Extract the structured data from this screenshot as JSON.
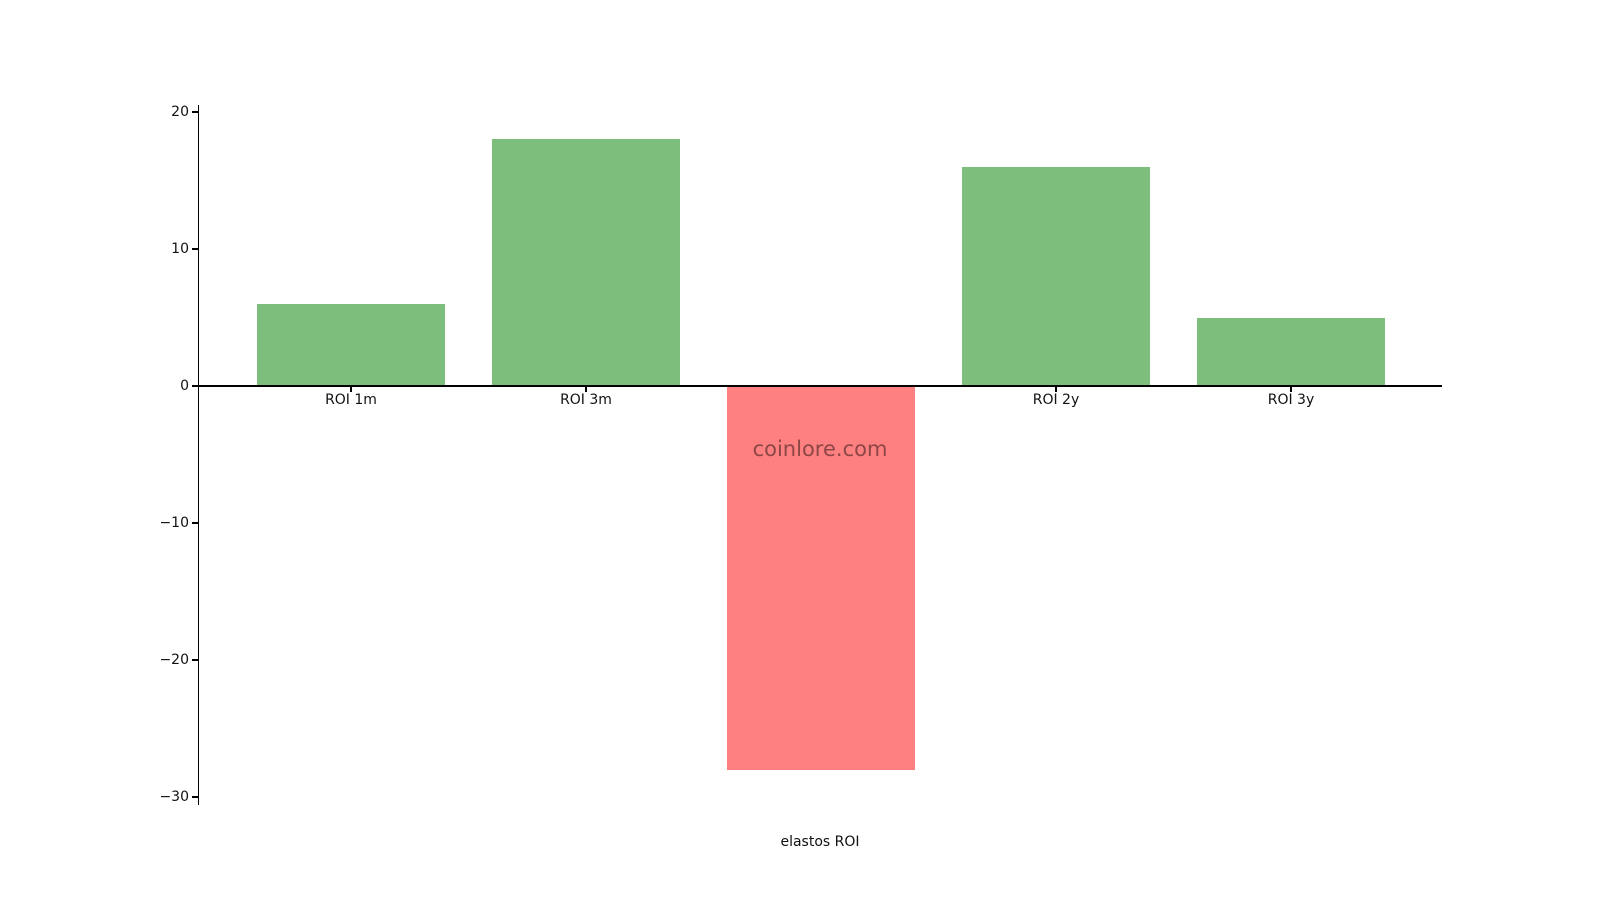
{
  "page": {
    "background_color": "#ffffff"
  },
  "chart_data": {
    "type": "bar",
    "title": "",
    "xlabel": "elastos ROI",
    "ylabel": "",
    "categories": [
      "ROI 1m",
      "ROI 3m",
      "",
      "ROI 2y",
      "ROI 3y"
    ],
    "values": [
      6,
      18,
      -28,
      16,
      5
    ],
    "bar_colors": [
      "#7dbe7d",
      "#7dbe7d",
      "#ff8080",
      "#7dbe7d",
      "#7dbe7d"
    ],
    "positive_color": "#7dbe7d",
    "negative_color": "#ff8080",
    "yticks": [
      20,
      10,
      0,
      -10,
      -20,
      -30
    ],
    "ytick_labels": [
      "20",
      "10",
      "0",
      "−10",
      "−20",
      "−30"
    ],
    "ylim": [
      -30.6,
      20.5
    ],
    "grid": false,
    "legend_position": "none",
    "axis_color": "#000000",
    "watermark": "coinlore.com"
  }
}
